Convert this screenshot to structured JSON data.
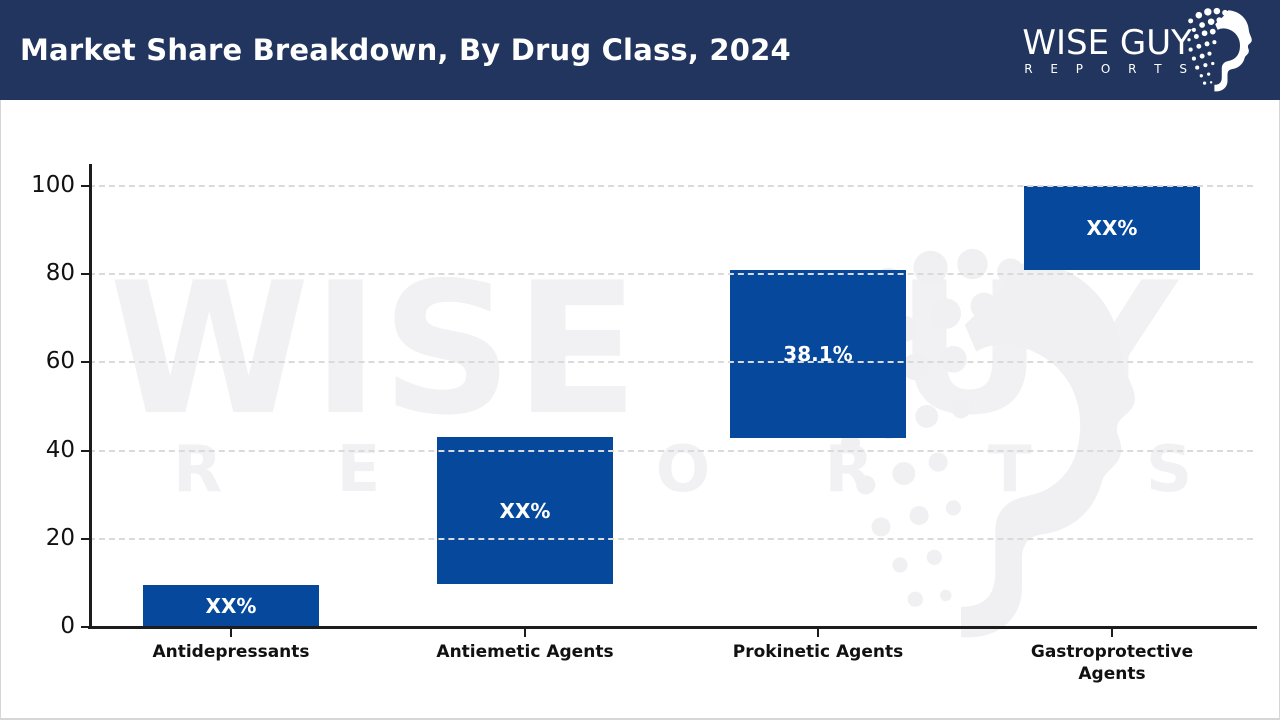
{
  "header": {
    "title": "Market Share Breakdown, By Drug Class, 2024",
    "logo": {
      "line1": "WISE GUY",
      "line2": "R E P O R T S"
    }
  },
  "watermark": {
    "line1": "WISE GUY",
    "line2": "R E P O R T S"
  },
  "chart_data": {
    "type": "waterfall",
    "title": "Market Share Breakdown, By Drug Class, 2024",
    "categories": [
      "Antidepressants",
      "Antiemetic Agents",
      "Prokinetic Agents",
      "Gastroprotective Agents"
    ],
    "segments": [
      {
        "category": "Antidepressants",
        "from": 0,
        "to": 9.5,
        "value": 9.5,
        "label": "XX%",
        "masked": true
      },
      {
        "category": "Antiemetic Agents",
        "from": 9.7,
        "to": 43.0,
        "value": 33.3,
        "label": "XX%",
        "masked": true
      },
      {
        "category": "Prokinetic Agents",
        "from": 42.9,
        "to": 81.0,
        "value": 38.1,
        "label": "38.1%",
        "masked": false
      },
      {
        "category": "Gastroprotective Agents",
        "from": 81.0,
        "to": 100.0,
        "value": 19.0,
        "label": "XX%",
        "masked": true
      }
    ],
    "yticks": [
      0,
      20,
      40,
      60,
      80,
      100
    ],
    "ylim": [
      0,
      105
    ],
    "xlabel": "",
    "ylabel": "",
    "grid": "horizontal-dashed",
    "legend": "none",
    "bar_color": "#05489C",
    "bar_label_color": "#FFFFFF"
  },
  "colors": {
    "header_bg": "#21355E",
    "bar": "#05489C",
    "watermark": "#F1F1F3",
    "grid": "#DADADA",
    "axis": "#1C1C1C",
    "frame_border": "#D6D6D6"
  }
}
